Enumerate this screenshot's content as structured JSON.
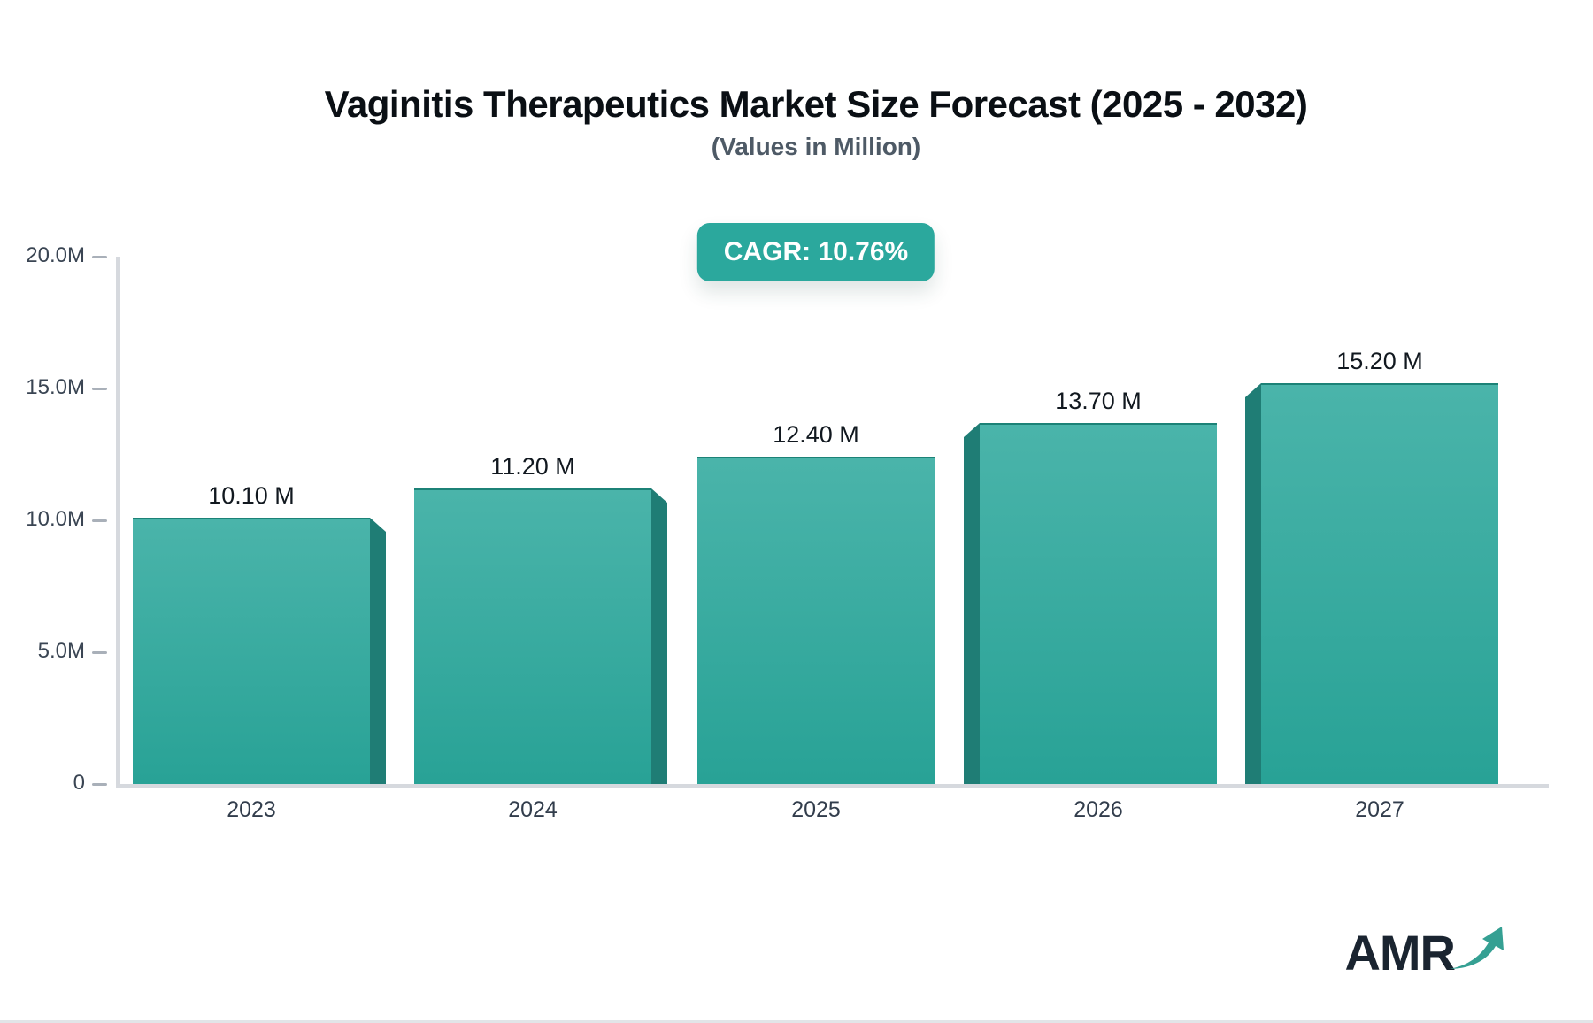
{
  "title": "Vaginitis Therapeutics Market Size Forecast (2025 - 2032)",
  "subtitle": "(Values in Million)",
  "badge": {
    "label": "CAGR: 10.76%",
    "bg": "#2BA89D"
  },
  "chart_data": {
    "type": "bar",
    "title": "Vaginitis Therapeutics Market Size Forecast (2025 - 2032)",
    "subtitle": "(Values in Million)",
    "categories": [
      "2023",
      "2024",
      "2025",
      "2026",
      "2027"
    ],
    "values": [
      10.1,
      11.2,
      12.4,
      13.7,
      15.2
    ],
    "bar_labels": [
      "10.10 M",
      "11.20 M",
      "12.40 M",
      "13.70 M",
      "15.20 M"
    ],
    "xlabel": "",
    "ylabel": "",
    "ylim": [
      0,
      20
    ],
    "y_ticks": [
      {
        "label": "20.0M",
        "value": 20
      },
      {
        "label": "15.0M",
        "value": 15
      },
      {
        "label": "10.0M",
        "value": 10
      },
      {
        "label": "5.0M",
        "value": 5
      },
      {
        "label": "0",
        "value": 0
      }
    ],
    "grid": false,
    "legend": "none",
    "bar_color_top": "#4AB4AA",
    "bar_color_bottom": "#28A296",
    "bar_side_color": "#1F7D75",
    "bar_3d_sides": [
      "right",
      "right",
      "none",
      "left",
      "left"
    ]
  },
  "logo": {
    "text": "AMR",
    "arrow_icon": "trend-up-arrow",
    "text_color": "#1A2430",
    "arrow_color": "#35A093"
  },
  "colors": {
    "axis": "#D6D9DE",
    "tick": "#A9B0B9",
    "tick_label": "#3A4553",
    "year_label": "#323D4C",
    "value_label": "#11181F",
    "title": "#0A0F14",
    "subtitle": "#4E5A66"
  }
}
